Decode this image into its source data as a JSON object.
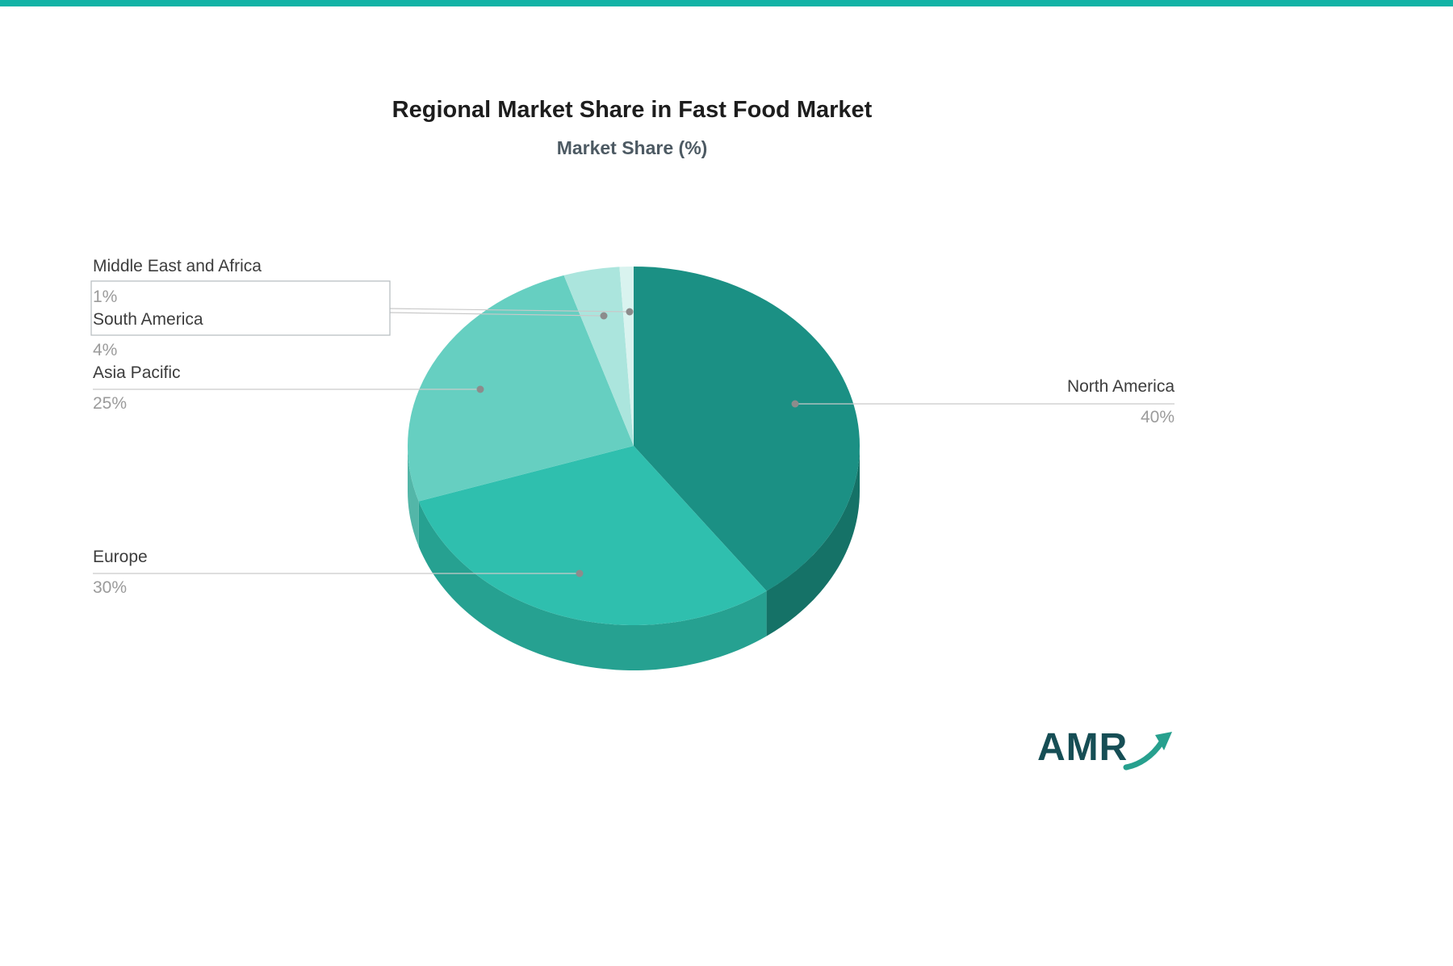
{
  "page": {
    "background": "#ffffff"
  },
  "colors": {
    "top_bar": "#12b3a6",
    "leader_line": "#c9c9c9",
    "leader_dot": "#8c8c8c",
    "label_text": "#3d3d3d",
    "value_text": "#9b9b9b",
    "logo_text_color": "#164e55",
    "logo_arrow_color": "#27a08e"
  },
  "chart_data": {
    "type": "pie",
    "style": "3d-pie",
    "title": "Regional Market Share in Fast Food Market",
    "subtitle": "Market Share (%)",
    "unit": "%",
    "start_angle_deg": 0,
    "direction": "clockwise",
    "legend_position": "none",
    "segments": [
      {
        "label": "North America",
        "value": 40,
        "display": "40%",
        "color": "#1b9084",
        "side_color": "#157267"
      },
      {
        "label": "Europe",
        "value": 30,
        "display": "30%",
        "color": "#2fbfae",
        "side_color": "#26a191"
      },
      {
        "label": "Asia Pacific",
        "value": 25,
        "display": "25%",
        "color": "#66cfc1",
        "side_color": "#53b6a8"
      },
      {
        "label": "South America",
        "value": 4,
        "display": "4%",
        "color": "#abe5dd",
        "side_color": "#93d3c9"
      },
      {
        "label": "Middle East and Africa",
        "value": 1,
        "display": "1%",
        "color": "#d9f3ef",
        "side_color": "#c2e6df"
      }
    ]
  },
  "branding": {
    "logo_text": "AMR"
  }
}
